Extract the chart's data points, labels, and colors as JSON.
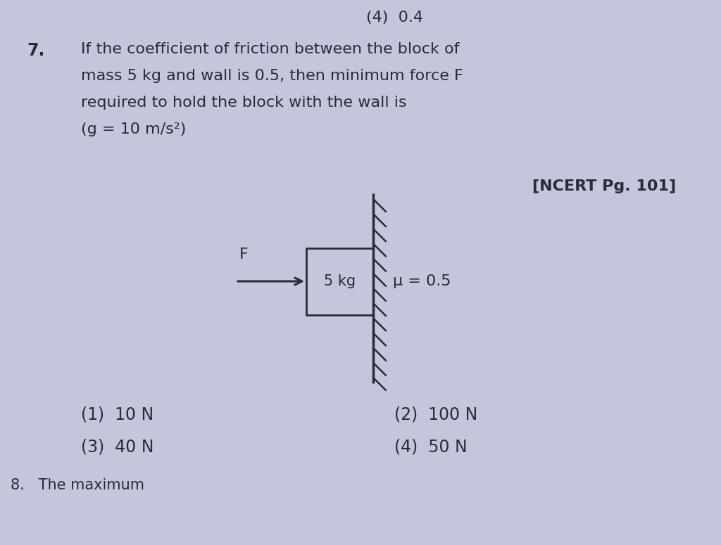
{
  "background_color": "#c4c6dc",
  "prev_answer": "(4)  0.4",
  "question_number": "7.",
  "question_lines": [
    "If the coefficient of friction between the block of",
    "mass 5 kg and wall is 0.5, then minimum force F",
    "required to hold the block with the wall is",
    "(g = 10 m/s²)"
  ],
  "reference": "[NCERT Pg. 101]",
  "options": [
    {
      "num": "(1)",
      "text": "10 N"
    },
    {
      "num": "(2)",
      "text": "100 N"
    },
    {
      "num": "(3)",
      "text": "40 N"
    },
    {
      "num": "(4)",
      "text": "50 N"
    }
  ],
  "next_label": "8.   The maximum",
  "diagram": {
    "block_label": "5 kg",
    "mu_label": "μ = 0.5",
    "force_label": "F",
    "wall_tick_count": 13
  },
  "text_color": "#2a2a3a",
  "font_size_question": 16,
  "font_size_options": 17,
  "font_size_prev": 16,
  "font_size_ref": 16,
  "font_size_diagram": 15
}
